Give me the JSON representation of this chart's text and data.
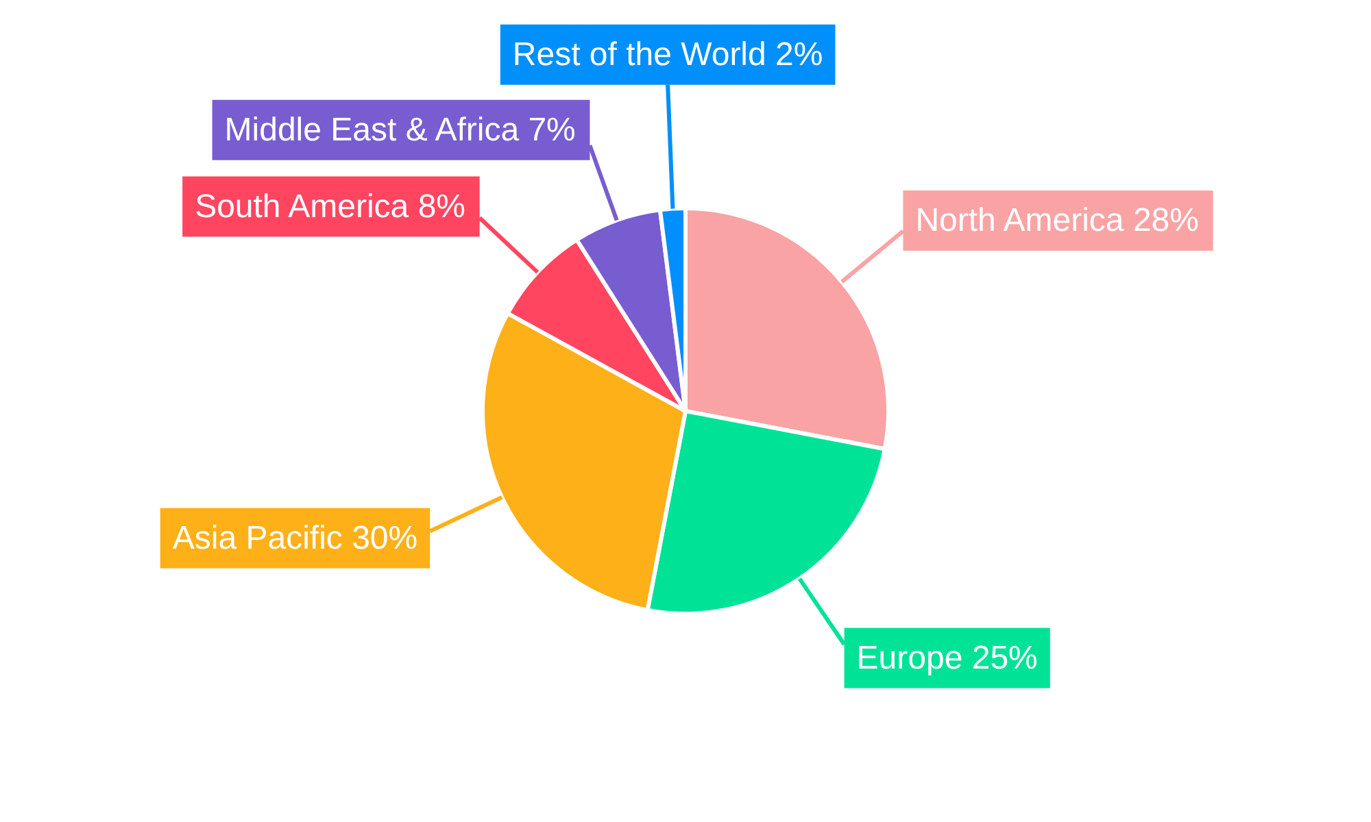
{
  "chart_data": {
    "type": "pie",
    "categories": [
      "North America",
      "Europe",
      "Asia Pacific",
      "South America",
      "Middle East & Africa",
      "Rest of the World"
    ],
    "values": [
      28,
      25,
      30,
      8,
      7,
      2
    ],
    "value_labels": [
      "28%",
      "25%",
      "30%",
      "8%",
      "7%",
      "2%"
    ],
    "colors": [
      "#f9a3a4",
      "#00e396",
      "#feb019",
      "#ff4560",
      "#775dd0",
      "#008ffb"
    ]
  }
}
